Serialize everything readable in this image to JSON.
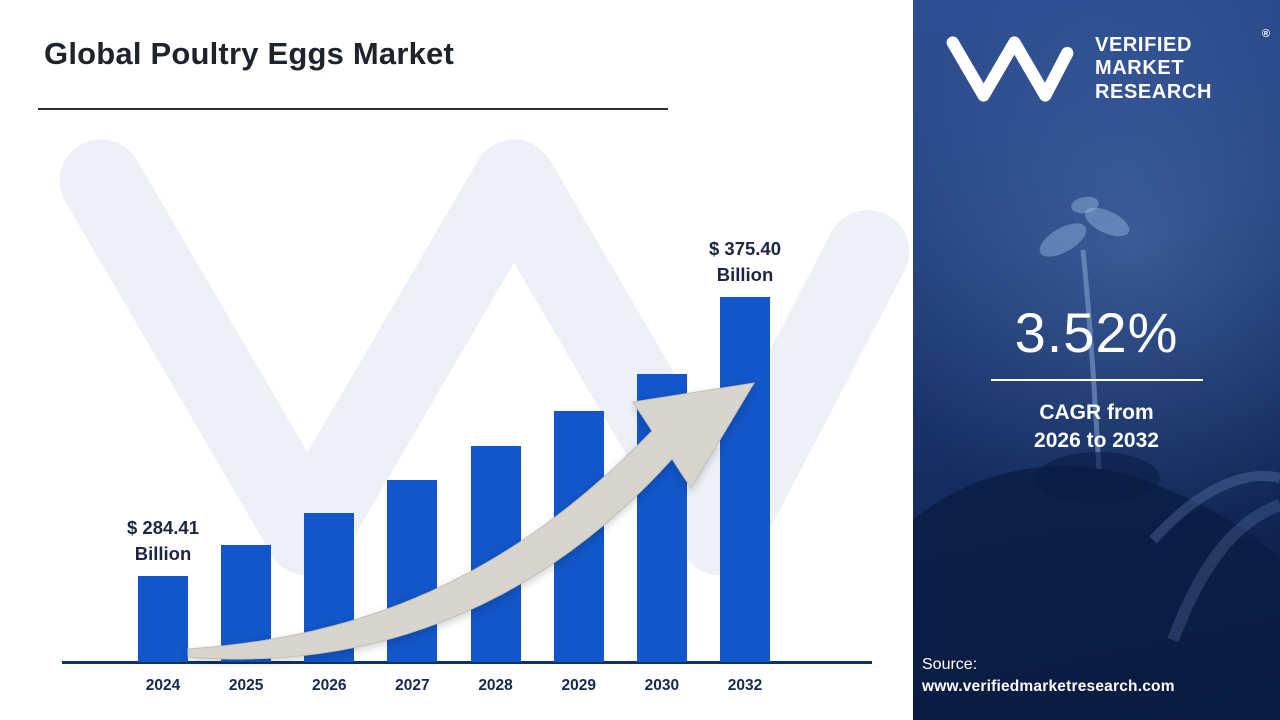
{
  "title": "Global Poultry Eggs Market",
  "chart_data": {
    "type": "bar",
    "title": "Global Poultry Eggs Market",
    "unit": "Billion",
    "categories": [
      "2024",
      "2025",
      "2026",
      "2027",
      "2028",
      "2029",
      "2030",
      "2032"
    ],
    "values": [
      284.41,
      294.45,
      304.85,
      315.6,
      326.74,
      338.27,
      350.21,
      375.4
    ],
    "annotations": [
      {
        "category": "2024",
        "label_value": "$ 284.41",
        "label_unit": "Billion"
      },
      {
        "category": "2032",
        "label_value": "$ 375.40",
        "label_unit": "Billion"
      }
    ],
    "bar_color": "#1256c9",
    "axis_color": "#0f3166",
    "grid": false,
    "legend": false
  },
  "watermark": {
    "monogram": "VM",
    "color": "#eef0f7"
  },
  "sidebar": {
    "logo": {
      "monogram": "VM",
      "lines": [
        "VERIFIED",
        "MARKET",
        "RESEARCH"
      ],
      "registered": "®"
    },
    "cagr": {
      "value": "3.52%",
      "caption_line1": "CAGR from",
      "caption_line2": "2026 to 2032"
    },
    "source": {
      "label": "Source:",
      "url": "www.verifiedmarketresearch.com"
    }
  },
  "colors": {
    "bar": "#1256c9",
    "panel_background": "#16306b",
    "arrow_fill": "#d8d5cf",
    "title_text": "#1e232c",
    "watermark": "#eef0f7"
  }
}
